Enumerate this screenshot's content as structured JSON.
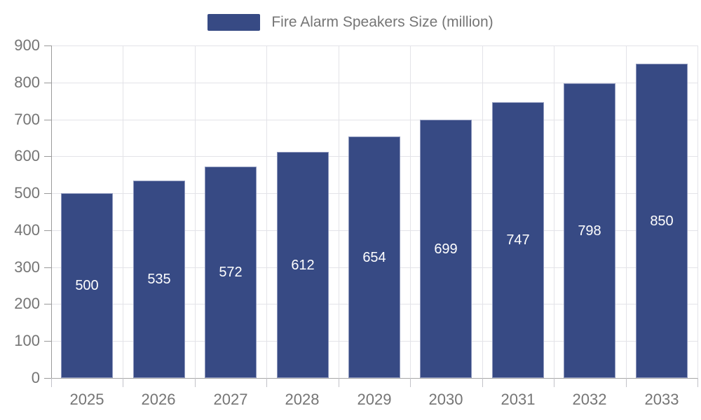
{
  "chart_data": {
    "type": "bar",
    "title": "Fire Alarm Speakers Size (million)",
    "categories": [
      "2025",
      "2026",
      "2027",
      "2028",
      "2029",
      "2030",
      "2031",
      "2032",
      "2033"
    ],
    "series": [
      {
        "name": "Fire Alarm Speakers Size (million)",
        "values": [
          500,
          535,
          572,
          612,
          654,
          699,
          747,
          798,
          850
        ]
      }
    ],
    "bar_value_labels": [
      "500",
      "535",
      "572",
      "612",
      "654",
      "699",
      "747",
      "798",
      "850"
    ],
    "xlabel": "",
    "ylabel": "",
    "ylim": [
      0,
      900
    ],
    "y_ticks": [
      0,
      100,
      200,
      300,
      400,
      500,
      600,
      700,
      800,
      900
    ],
    "grid": true,
    "legend_position": "top-center",
    "value_labels_position": "inside-center"
  },
  "colors": {
    "bar_fill": "#374a84",
    "bar_stroke": "#8e98bd",
    "grid_line": "#e3e3e8",
    "axis_line": "#a6a6a6",
    "y_axis_line": "#9a9a9a",
    "tick_mark": "#c2c2c8",
    "axis_text": "#757575",
    "legend_text": "#757575",
    "bar_label_text": "#ffffff",
    "background": "#ffffff"
  }
}
